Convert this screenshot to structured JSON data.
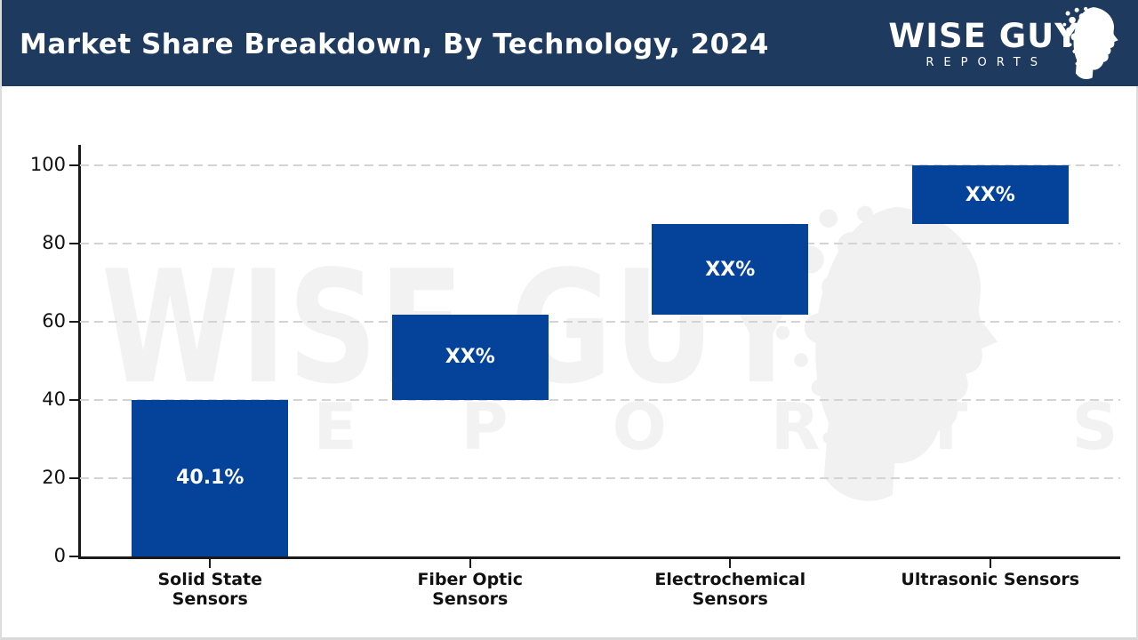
{
  "header": {
    "title": "Market Share Breakdown, By Technology, 2024",
    "logo": {
      "line1": "WISE GUY",
      "line2": "REPORTS"
    }
  },
  "watermark": {
    "line1": "WISE GUY",
    "line2": "R E P O R T S"
  },
  "colors": {
    "header_bg": "#1f3a5f",
    "bar_fill": "#05439b",
    "gridline": "#d4d4d4",
    "axis": "#1a1a1a",
    "watermark": "#f2f2f2",
    "title_text": "#ffffff",
    "bar_label_text": "#ffffff"
  },
  "chart_data": {
    "type": "bar",
    "subtype": "waterfall",
    "title": "Market Share Breakdown, By Technology, 2024",
    "xlabel": "",
    "ylabel": "",
    "ylim": [
      0,
      100
    ],
    "yticks": [
      0,
      20,
      40,
      60,
      80,
      100
    ],
    "grid": "horizontal-dashed",
    "legend": "none",
    "categories": [
      "Solid State Sensors",
      "Fiber Optic Sensors",
      "Electrochemical Sensors",
      "Ultrasonic Sensors"
    ],
    "category_label_lines": [
      [
        "Solid State",
        "Sensors"
      ],
      [
        "Fiber Optic",
        "Sensors"
      ],
      [
        "Electrochemical",
        "Sensors"
      ],
      [
        "Ultrasonic Sensors"
      ]
    ],
    "segments": [
      {
        "category": "Solid State Sensors",
        "start": 0,
        "end": 40.1,
        "label": "40.1%",
        "estimated_value": 40.1
      },
      {
        "category": "Fiber Optic Sensors",
        "start": 40.1,
        "end": 61.8,
        "label": "XX%",
        "estimated_value": 21.7
      },
      {
        "category": "Electrochemical Sensors",
        "start": 61.8,
        "end": 84.9,
        "label": "XX%",
        "estimated_value": 23.1
      },
      {
        "category": "Ultrasonic Sensors",
        "start": 84.9,
        "end": 100,
        "label": "XX%",
        "estimated_value": 15.1
      }
    ]
  }
}
